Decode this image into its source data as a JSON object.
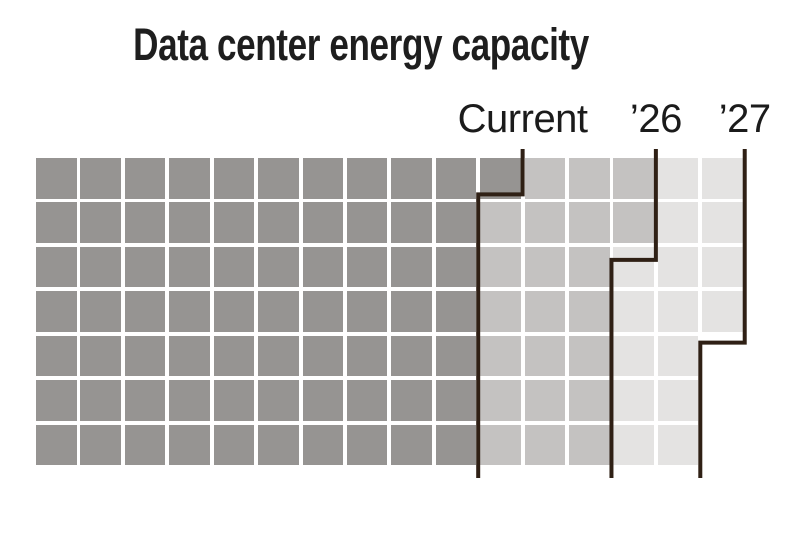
{
  "page": {
    "background": "#ffffff"
  },
  "chart_data": {
    "type": "waffle",
    "title": "Data center energy capacity",
    "rows": 7,
    "cols": 16,
    "annotations": [
      "Current",
      "’26",
      "’27"
    ],
    "series": [
      {
        "name": "Current",
        "end_col_per_row": [
          11,
          10,
          10,
          10,
          10,
          10,
          10
        ],
        "units": 71,
        "color": "#969492"
      },
      {
        "name": "’26",
        "end_col_per_row": [
          14,
          14,
          13,
          13,
          13,
          13,
          13
        ],
        "units": 93,
        "color": "#c4c2c1"
      },
      {
        "name": "’27",
        "end_col_per_row": [
          16,
          16,
          16,
          16,
          15,
          15,
          15
        ],
        "units": 109,
        "color": "#e4e3e2"
      }
    ],
    "step_after_row": [
      1,
      2,
      4
    ],
    "line_color": "#2f2015",
    "text_color": "#1e1e1e",
    "legend_position": "labels-above-step-lines",
    "grid": "16x7 waffle, white gaps between squares"
  }
}
